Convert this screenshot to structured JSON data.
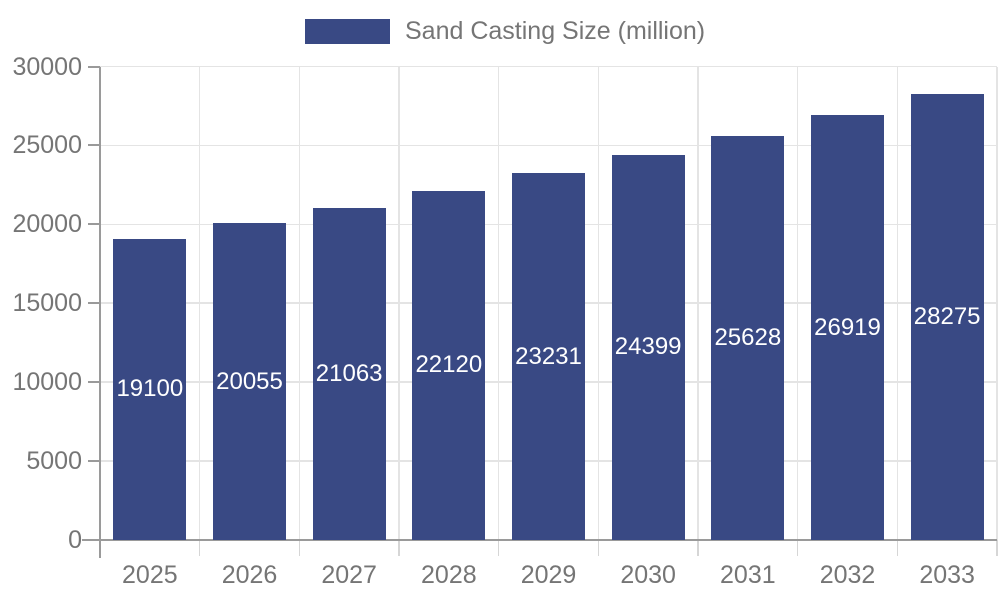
{
  "chart_data": {
    "type": "bar",
    "title": "",
    "legend": "Sand Casting Size (million)",
    "legend_position": "top-center",
    "categories": [
      "2025",
      "2026",
      "2027",
      "2028",
      "2029",
      "2030",
      "2031",
      "2032",
      "2033"
    ],
    "values": [
      19100,
      20055,
      21063,
      22120,
      23231,
      24399,
      25628,
      26919,
      28275
    ],
    "xlabel": "",
    "ylabel": "",
    "ylim": [
      0,
      30000
    ],
    "y_ticks": [
      0,
      5000,
      10000,
      15000,
      20000,
      25000,
      30000
    ],
    "grid": true,
    "colors": {
      "bar": "#394984",
      "bar_label": "#ffffff",
      "tick_text": "#757575",
      "grid": "#e4e4e4",
      "axis": "#9a9a9a",
      "x_tick": "#d6d6d6",
      "background": "#ffffff"
    }
  }
}
